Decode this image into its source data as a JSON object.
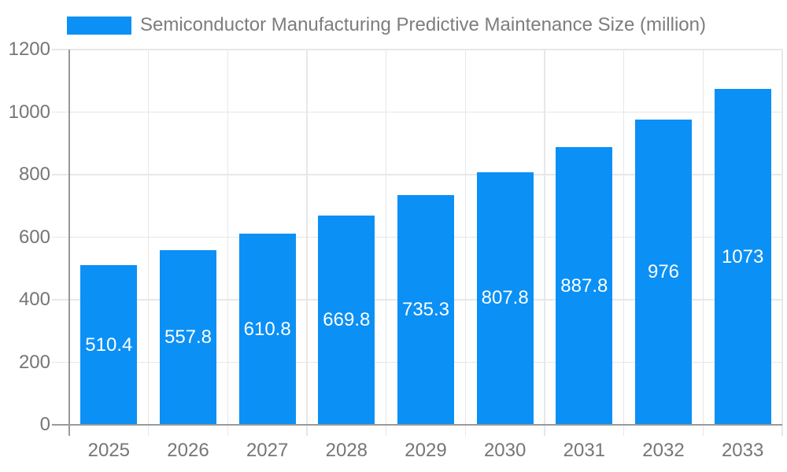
{
  "legend": {
    "position": "top"
  },
  "chart_data": {
    "type": "bar",
    "title": "Semiconductor Manufacturing Predictive Maintenance Size (million)",
    "categories": [
      "2025",
      "2026",
      "2027",
      "2028",
      "2029",
      "2030",
      "2031",
      "2032",
      "2033"
    ],
    "series": [
      {
        "name": "Semiconductor Manufacturing Predictive Maintenance Size (million)",
        "values": [
          510.4,
          557.8,
          610.8,
          669.8,
          735.3,
          807.8,
          887.8,
          976,
          1073
        ]
      }
    ],
    "data_labels": [
      "510.4",
      "557.8",
      "610.8",
      "669.8",
      "735.3",
      "807.8",
      "887.8",
      "976",
      "1073"
    ],
    "xlabel": "",
    "ylabel": "",
    "ylim": [
      0,
      1200
    ],
    "yticks": [
      0,
      200,
      400,
      600,
      800,
      1000,
      1200
    ],
    "grid": true,
    "legend_position": "top",
    "colors": {
      "bar": "#0b90f5",
      "bar_label_text": "#ffffff",
      "axis_line": "#999999",
      "grid_line": "#e7e7e7",
      "tick_text": "#767676",
      "legend_text": "#7d7d7d",
      "background": "#ffffff"
    }
  }
}
